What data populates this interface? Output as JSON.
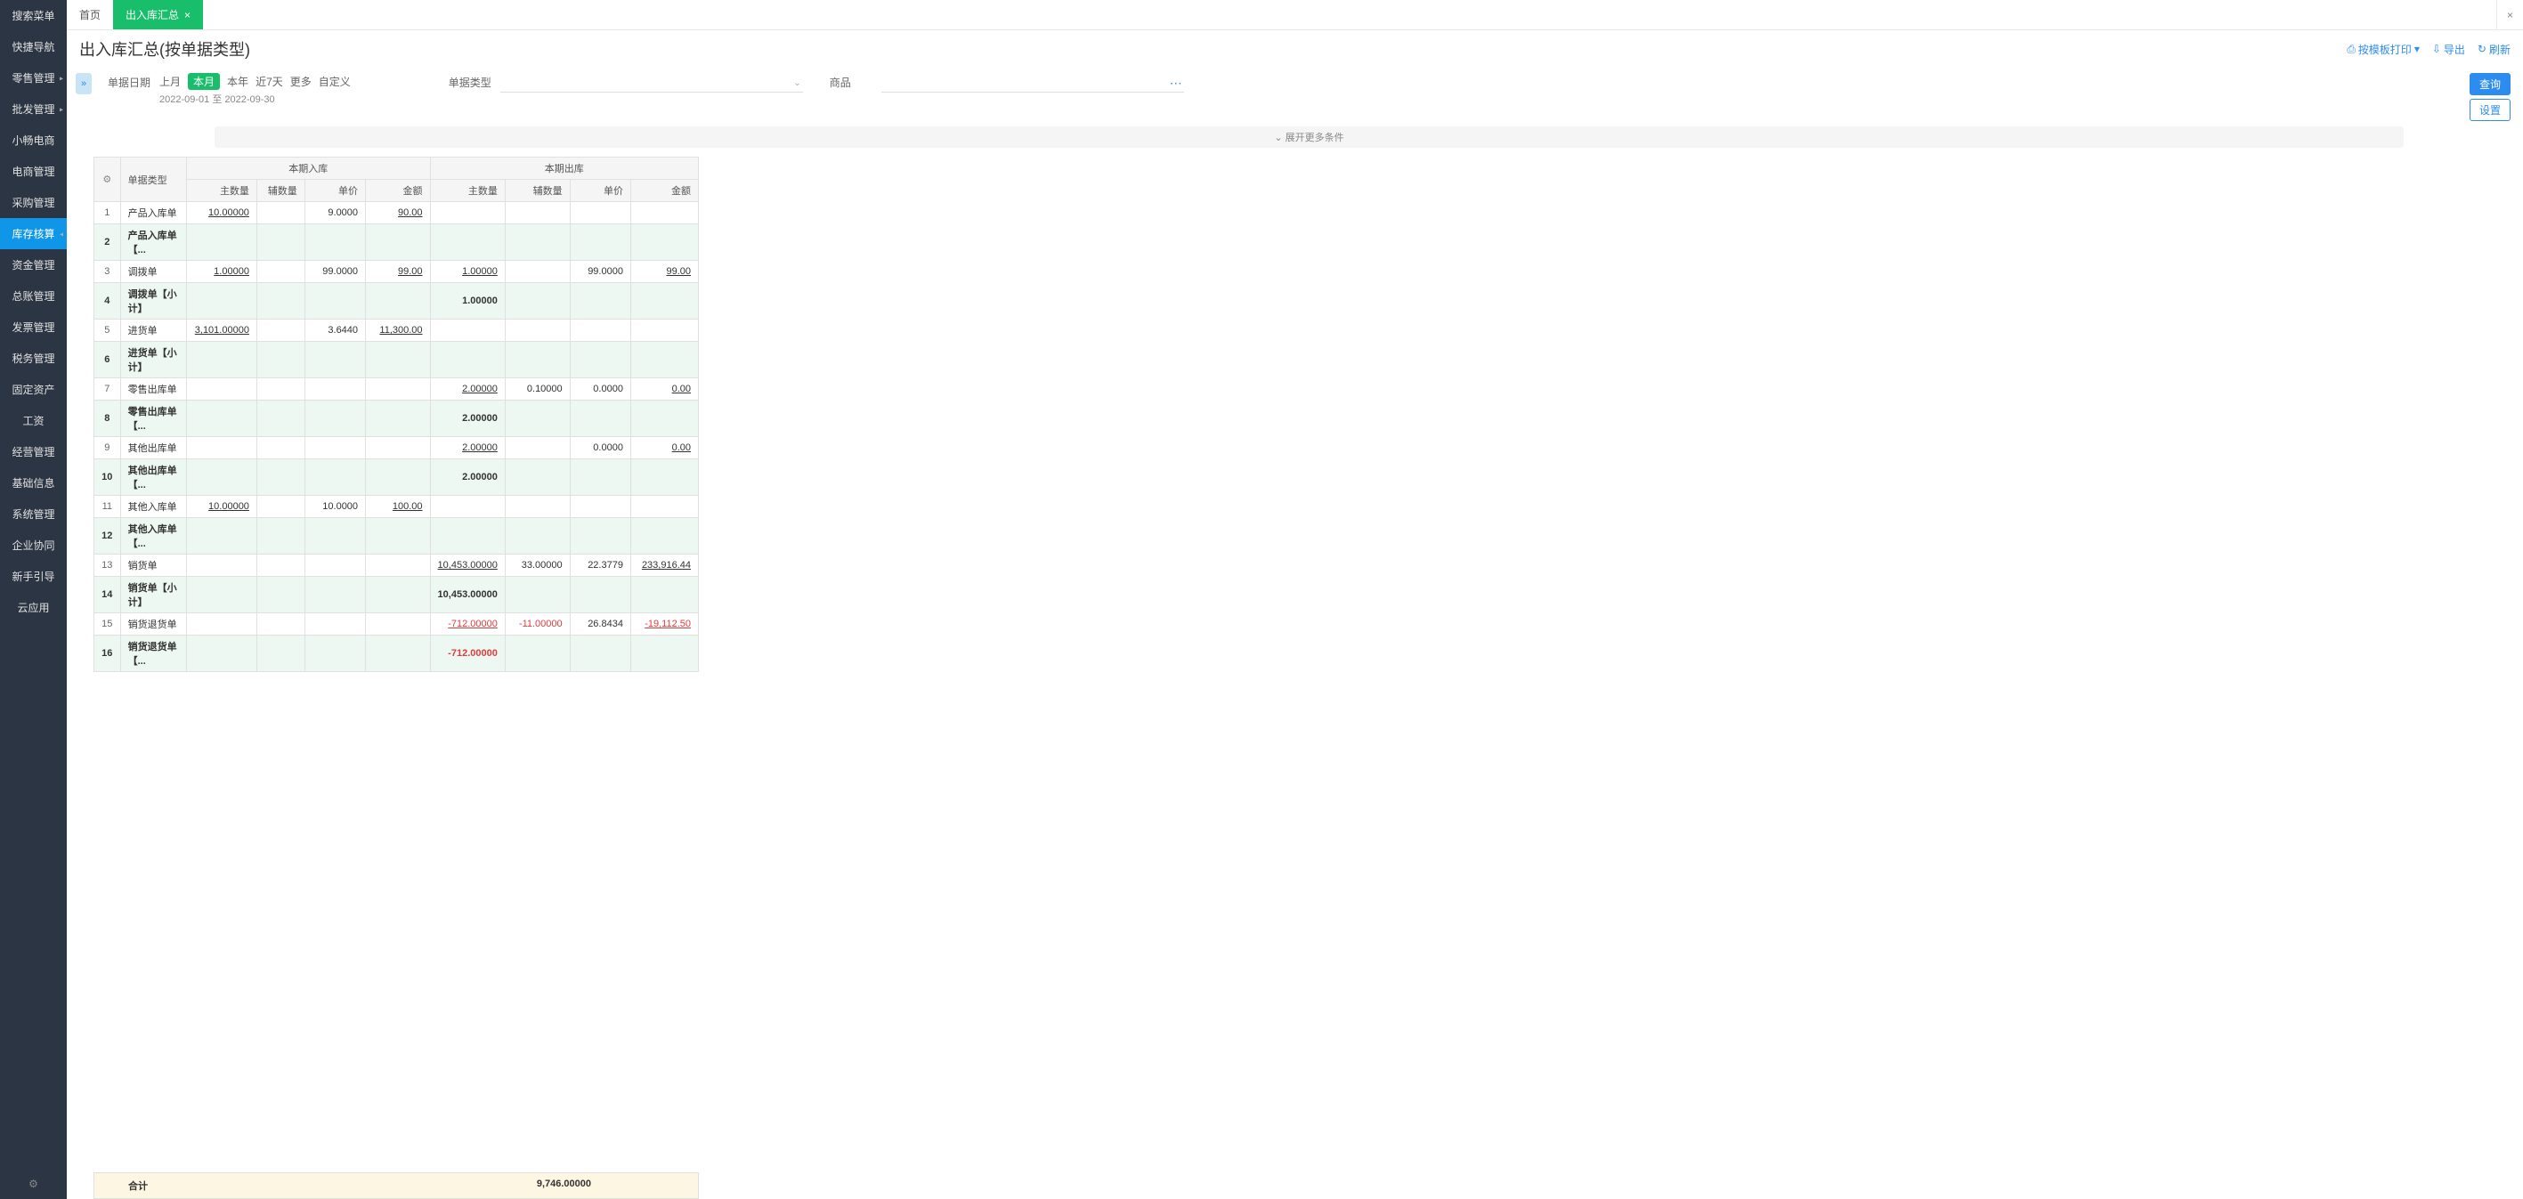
{
  "sidebar": {
    "items": [
      {
        "label": "搜索菜单",
        "chevron": false
      },
      {
        "label": "快捷导航",
        "chevron": false
      },
      {
        "label": "零售管理",
        "chevron": true
      },
      {
        "label": "批发管理",
        "chevron": true
      },
      {
        "label": "小畅电商",
        "chevron": false
      },
      {
        "label": "电商管理",
        "chevron": false
      },
      {
        "label": "采购管理",
        "chevron": false
      },
      {
        "label": "库存核算",
        "chevron": true,
        "active": true
      },
      {
        "label": "资金管理",
        "chevron": false
      },
      {
        "label": "总账管理",
        "chevron": false
      },
      {
        "label": "发票管理",
        "chevron": false
      },
      {
        "label": "税务管理",
        "chevron": false
      },
      {
        "label": "固定资产",
        "chevron": false
      },
      {
        "label": "工资",
        "chevron": false
      },
      {
        "label": "经营管理",
        "chevron": false
      },
      {
        "label": "基础信息",
        "chevron": false
      },
      {
        "label": "系统管理",
        "chevron": false
      },
      {
        "label": "企业协同",
        "chevron": false
      },
      {
        "label": "新手引导",
        "chevron": false
      },
      {
        "label": "云应用",
        "chevron": false
      }
    ]
  },
  "tabs": {
    "home": "首页",
    "active": "出入库汇总"
  },
  "titlebar": {
    "title": "出入库汇总(按单据类型)",
    "print": "按模板打印",
    "export": "导出",
    "refresh": "刷新"
  },
  "filters": {
    "date_label": "单据日期",
    "date_options": [
      "上月",
      "本月",
      "本年",
      "近7天",
      "更多",
      "自定义"
    ],
    "date_active_index": 1,
    "date_range": "2022-09-01 至 2022-09-30",
    "type_label": "单据类型",
    "product_label": "商品",
    "search_btn": "查询",
    "settings_btn": "设置",
    "expand": "展开更多条件"
  },
  "table": {
    "header": {
      "gear": "⚙",
      "doc_type": "单据类型",
      "in_group": "本期入库",
      "out_group": "本期出库",
      "main_qty": "主数量",
      "aux_qty": "辅数量",
      "price": "单价",
      "amount": "金额"
    },
    "rows": [
      {
        "idx": "1",
        "type": "产品入库单",
        "in_main": "10.00000",
        "in_aux": "",
        "in_price": "9.0000",
        "in_amt": "90.00",
        "out_main": "",
        "out_aux": "",
        "out_price": "",
        "out_amt": "",
        "ul_in_main": true,
        "ul_in_amt": true
      },
      {
        "idx": "2",
        "type": "产品入库单【...",
        "subtotal": true
      },
      {
        "idx": "3",
        "type": "调拨单",
        "in_main": "1.00000",
        "in_aux": "",
        "in_price": "99.0000",
        "in_amt": "99.00",
        "out_main": "1.00000",
        "out_aux": "",
        "out_price": "99.0000",
        "out_amt": "99.00",
        "ul_in_main": true,
        "ul_in_amt": true,
        "ul_out_main": true,
        "ul_out_amt": true
      },
      {
        "idx": "4",
        "type": "调拨单【小计】",
        "out_main": "1.00000",
        "subtotal": true
      },
      {
        "idx": "5",
        "type": "进货单",
        "in_main": "3,101.00000",
        "in_aux": "",
        "in_price": "3.6440",
        "in_amt": "11,300.00",
        "ul_in_main": true,
        "ul_in_amt": true
      },
      {
        "idx": "6",
        "type": "进货单【小计】",
        "subtotal": true
      },
      {
        "idx": "7",
        "type": "零售出库单",
        "out_main": "2.00000",
        "out_aux": "0.10000",
        "out_price": "0.0000",
        "out_amt": "0.00",
        "ul_out_main": true,
        "ul_out_amt": true
      },
      {
        "idx": "8",
        "type": "零售出库单【...",
        "out_main": "2.00000",
        "subtotal": true
      },
      {
        "idx": "9",
        "type": "其他出库单",
        "out_main": "2.00000",
        "out_price": "0.0000",
        "out_amt": "0.00",
        "ul_out_main": true,
        "ul_out_amt": true
      },
      {
        "idx": "10",
        "type": "其他出库单【...",
        "out_main": "2.00000",
        "subtotal": true
      },
      {
        "idx": "11",
        "type": "其他入库单",
        "in_main": "10.00000",
        "in_price": "10.0000",
        "in_amt": "100.00",
        "ul_in_main": true,
        "ul_in_amt": true
      },
      {
        "idx": "12",
        "type": "其他入库单【...",
        "subtotal": true
      },
      {
        "idx": "13",
        "type": "销货单",
        "out_main": "10,453.00000",
        "out_aux": "33.00000",
        "out_price": "22.3779",
        "out_amt": "233,916.44",
        "ul_out_main": true,
        "ul_out_amt": true
      },
      {
        "idx": "14",
        "type": "销货单【小计】",
        "out_main": "10,453.00000",
        "subtotal": true
      },
      {
        "idx": "15",
        "type": "销货退货单",
        "out_main": "-712.00000",
        "out_aux": "-11.00000",
        "out_price": "26.8434",
        "out_amt": "-19,112.50",
        "ul_out_main": true,
        "ul_out_amt": true,
        "neg": true
      },
      {
        "idx": "16",
        "type": "销货退货单【...",
        "out_main": "-712.00000",
        "subtotal": true,
        "neg": true
      }
    ],
    "footer": {
      "label": "合计",
      "value": "9,746.00000"
    }
  },
  "colors": {
    "sidebar_bg": "#2c3543",
    "sidebar_active": "#1096e8",
    "tab_active": "#19be6b",
    "link": "#2d8cf0",
    "negative": "#e03c3c",
    "subtotal_bg": "#eef8f3",
    "footer_bg": "#fdf6e3"
  }
}
